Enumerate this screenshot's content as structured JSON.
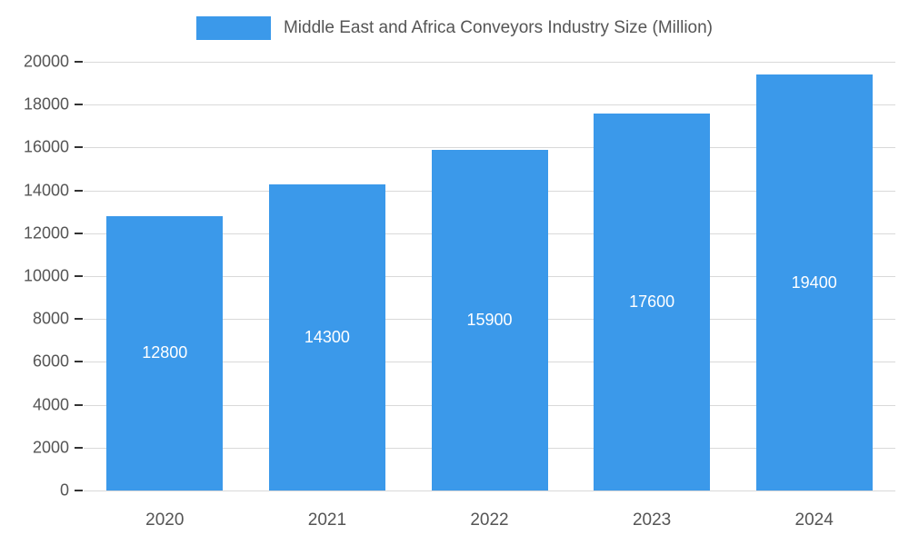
{
  "chart_data": {
    "type": "bar",
    "title": "Middle East and Africa Conveyors Industry Size (Million)",
    "categories": [
      "2020",
      "2021",
      "2022",
      "2023",
      "2024"
    ],
    "values": [
      12800,
      14300,
      15900,
      17600,
      19400
    ],
    "data_labels": [
      "12800",
      "14300",
      "15900",
      "17600",
      "19400"
    ],
    "xlabel": "",
    "ylabel": "",
    "ylim": [
      0,
      20000
    ],
    "ytick_step": 2000,
    "ytick_labels": [
      "0",
      "2000",
      "4000",
      "6000",
      "8000",
      "10000",
      "12000",
      "14000",
      "16000",
      "18000",
      "20000"
    ],
    "grid": true,
    "legend_position": "top",
    "colors": {
      "bar": "#3b99ea",
      "bar_label": "#ffffff",
      "axis_text": "#555555",
      "gridline": "#d9d9d9",
      "tick_mark": "#333333",
      "background": "#ffffff"
    }
  }
}
